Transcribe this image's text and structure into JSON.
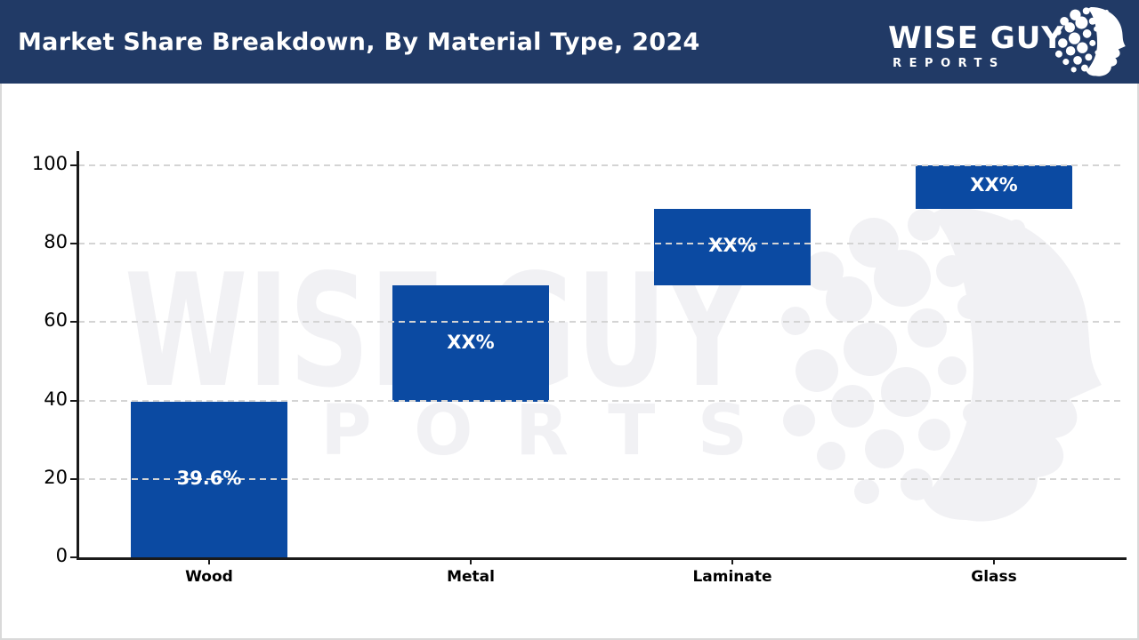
{
  "header": {
    "title": "Market Share Breakdown, By Material Type, 2024",
    "bg_color": "#213A66"
  },
  "logo": {
    "wordmark": "WISE GUY",
    "subtext": "REPORTS"
  },
  "watermark": {
    "wordmark": "WISE GUY",
    "subtext": "REPORTS"
  },
  "chart_data": {
    "type": "bar",
    "subtype": "waterfall",
    "title": "",
    "xlabel": "",
    "ylabel": "",
    "categories": [
      "Wood",
      "Metal",
      "Laminate",
      "Glass"
    ],
    "segments": [
      {
        "category": "Wood",
        "start": 0,
        "end": 39.6,
        "label": "39.6%"
      },
      {
        "category": "Metal",
        "start": 39.6,
        "end": 69.3,
        "label": "XX%"
      },
      {
        "category": "Laminate",
        "start": 69.3,
        "end": 88.9,
        "label": "XX%"
      },
      {
        "category": "Glass",
        "start": 88.9,
        "end": 100,
        "label": "XX%"
      }
    ],
    "y_ticks": [
      0,
      20,
      40,
      60,
      80,
      100
    ],
    "ylim": [
      0,
      104
    ],
    "grid": "horizontal-dashed, drawn over bars",
    "bar_color": "#0b4aa2",
    "label_color": "#ffffff",
    "legend": "none"
  }
}
